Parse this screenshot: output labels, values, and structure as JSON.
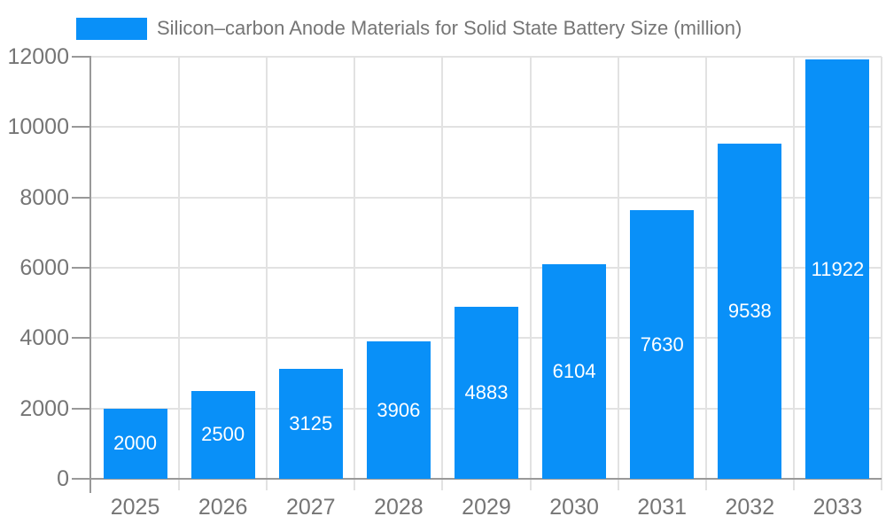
{
  "legend": {
    "series_label": "Silicon–carbon Anode Materials for Solid State Battery Size (million)"
  },
  "chart_data": {
    "type": "bar",
    "title": "Silicon–carbon Anode Materials for Solid State Battery Size (million)",
    "categories": [
      "2025",
      "2026",
      "2027",
      "2028",
      "2029",
      "2030",
      "2031",
      "2032",
      "2033"
    ],
    "values": [
      2000,
      2500,
      3125,
      3906,
      4883,
      6104,
      7630,
      9538,
      11922
    ],
    "data_labels_shown": true,
    "xlabel": "",
    "ylabel": "",
    "ylim": [
      0,
      12000
    ],
    "yticks": [
      0,
      2000,
      4000,
      6000,
      8000,
      10000,
      12000
    ],
    "grid": true,
    "legend_position": "top-left",
    "colors": {
      "bar": "#0990f8",
      "value_label": "#ffffff",
      "axis_text": "#757575",
      "axis_line": "#999999",
      "gridline": "#e2e2e2"
    }
  }
}
